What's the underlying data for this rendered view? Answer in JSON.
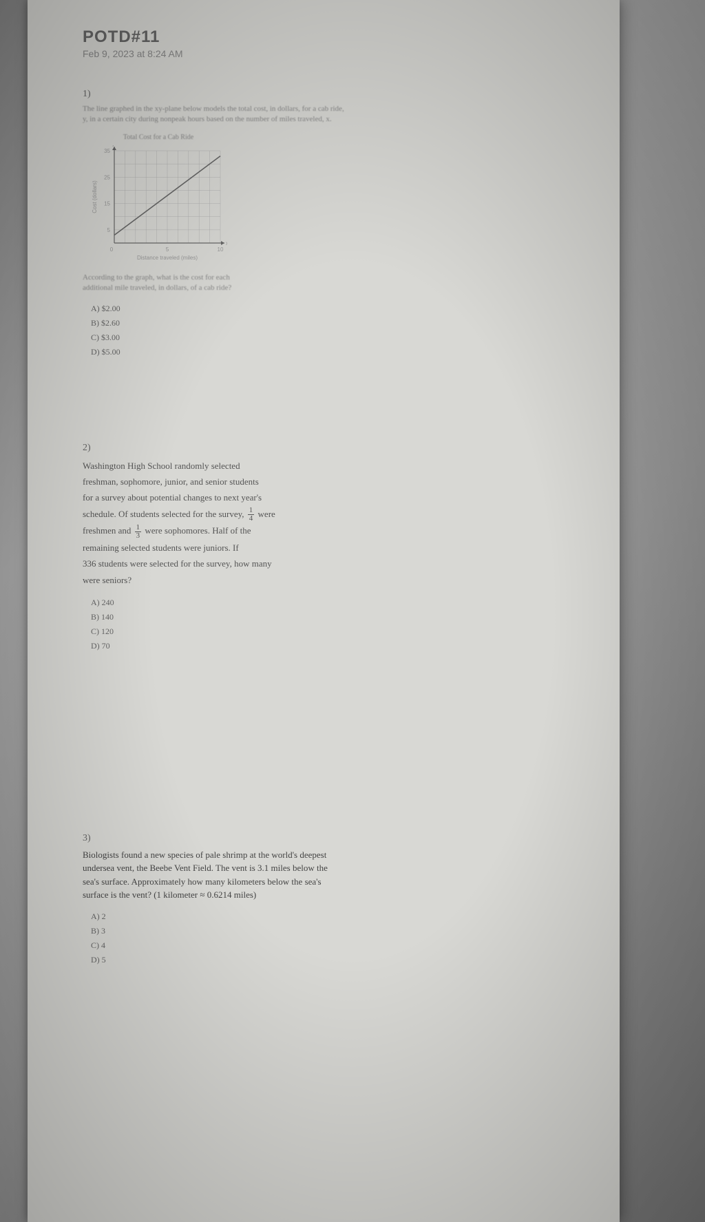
{
  "header": {
    "title": "POTD#11",
    "date": "Feb 9, 2023 at 8:24 AM"
  },
  "q1": {
    "num": "1)",
    "intro": "The line graphed in the xy-plane below models the total cost, in dollars, for a cab ride, y, in a certain city during nonpeak hours based on the number of miles traveled, x.",
    "chart": {
      "title": "Total Cost for a Cab Ride",
      "type": "line",
      "xlabel": "Distance traveled (miles)",
      "ylabel": "Cost (dollars)",
      "xlim": [
        0,
        10
      ],
      "ylim": [
        0,
        35
      ],
      "xtick_step": 5,
      "ytick_labels": [
        "5",
        "15",
        "25",
        "35"
      ],
      "ytick_values": [
        5,
        15,
        25,
        35
      ],
      "line_points": [
        [
          0,
          3
        ],
        [
          10,
          33
        ]
      ],
      "line_color": "#666666",
      "grid_color": "#aaaaaa",
      "background_color": "#d8d8d4",
      "axis_color": "#666666",
      "width": 180,
      "height": 150
    },
    "caption": "According to the graph, what is the cost for each additional mile traveled, in dollars, of a cab ride?",
    "opts": {
      "a": "A)  $2.00",
      "b": "B)  $2.60",
      "c": "C)  $3.00",
      "d": "D)  $5.00"
    }
  },
  "q2": {
    "num": "2)",
    "line1": "Washington High School randomly selected",
    "line2": "freshman, sophomore, junior, and senior students",
    "line3": "for a survey about potential changes to next year's",
    "line4a": "schedule. Of students selected for the survey, ",
    "line4b": " were",
    "line5a": "freshmen and ",
    "line5b": " were sophomores. Half of the",
    "line6": "remaining selected students were juniors. If",
    "line7": "336 students were selected for the survey, how many",
    "line8": "were seniors?",
    "frac1_n": "1",
    "frac1_d": "4",
    "frac2_n": "1",
    "frac2_d": "3",
    "opts": {
      "a": "A)  240",
      "b": "B)  140",
      "c": "C)  120",
      "d": "D)  70"
    }
  },
  "q3": {
    "num": "3)",
    "text": "Biologists found a new species of pale shrimp at the world's deepest undersea vent, the Beebe Vent Field. The vent is 3.1 miles below the sea's surface. Approximately how many kilometers below the sea's surface is the vent? (1 kilometer ≈ 0.6214 miles)",
    "opts": {
      "a": "A)  2",
      "b": "B)  3",
      "c": "C)  4",
      "d": "D)  5"
    }
  }
}
